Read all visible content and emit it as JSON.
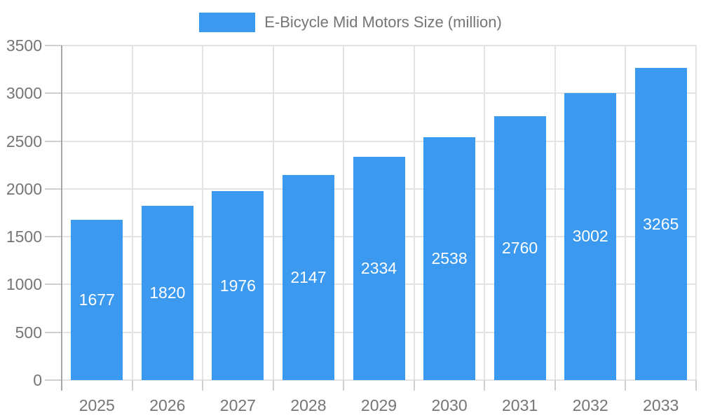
{
  "chart_data": {
    "type": "bar",
    "title": "E-Bicycle Mid Motors Size (million)",
    "legend": [
      "E-Bicycle Mid Motors Size (million)"
    ],
    "legend_position": "top",
    "categories": [
      "2025",
      "2026",
      "2027",
      "2028",
      "2029",
      "2030",
      "2031",
      "2032",
      "2033"
    ],
    "values": [
      1677,
      1820,
      1976,
      2147,
      2334,
      2538,
      2760,
      3002,
      3265
    ],
    "value_labels": [
      "1677",
      "1820",
      "1976",
      "2147",
      "2334",
      "2538",
      "2760",
      "3002",
      "3265"
    ],
    "xlabel": "",
    "ylabel": "",
    "ylim": [
      0,
      3500
    ],
    "yticks": [
      0,
      500,
      1000,
      1500,
      2000,
      2500,
      3000,
      3500
    ],
    "grid": true,
    "colors": {
      "bar": "#3B99F0",
      "value_label": "#ffffff",
      "axis_text": "#757575",
      "gridline": "#e3e3e3",
      "axis_line": "#a6a6a6",
      "tick": "#cfcfcf",
      "background": "#ffffff"
    }
  }
}
